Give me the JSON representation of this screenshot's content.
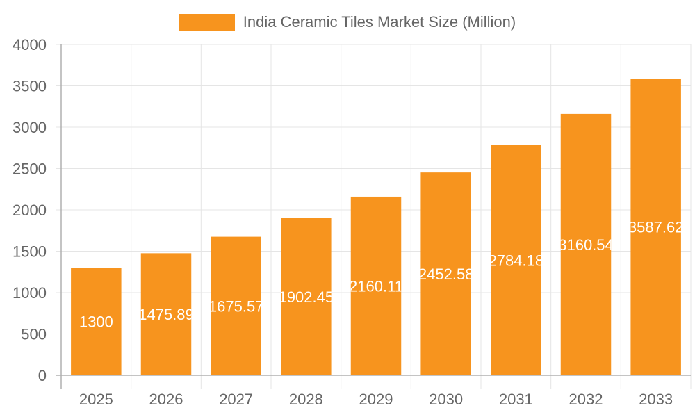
{
  "chart_data": {
    "type": "bar",
    "title": "",
    "categories": [
      "2025",
      "2026",
      "2027",
      "2028",
      "2029",
      "2030",
      "2031",
      "2032",
      "2033"
    ],
    "series": [
      {
        "name": "India Ceramic Tiles Market Size (Million)",
        "values": [
          1300,
          1475.89,
          1675.57,
          1902.45,
          2160.11,
          2452.58,
          2784.18,
          3160.54,
          3587.62
        ],
        "labels": [
          "1300",
          "1475.89",
          "1675.57",
          "1902.45",
          "2160.11",
          "2452.58",
          "2784.18",
          "3160.54",
          "3587.62"
        ],
        "color": "#F7941E"
      }
    ],
    "xlabel": "",
    "ylabel": "",
    "ylim": [
      0,
      4000
    ],
    "yticks": [
      0,
      500,
      1000,
      1500,
      2000,
      2500,
      3000,
      3500,
      4000
    ],
    "grid": true,
    "legend_position": "top",
    "data_labels": "inside-center, white"
  },
  "legend": {
    "label": "India Ceramic Tiles Market Size (Million)",
    "color": "#F7941E"
  },
  "colors": {
    "bar": "#F7941E",
    "grid": "#e5e5e5",
    "axis": "#b0b0b0",
    "tick_text": "#666666",
    "data_label": "#ffffff"
  }
}
